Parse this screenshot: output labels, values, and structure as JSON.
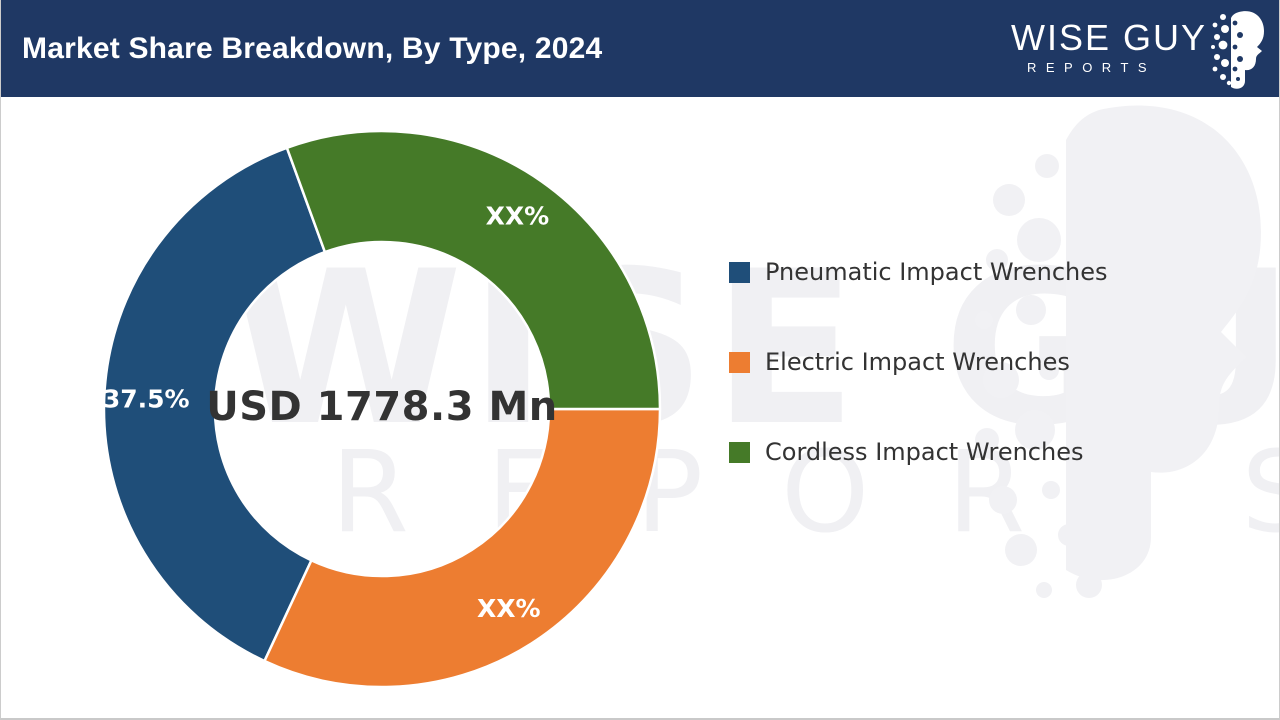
{
  "header": {
    "title": "Market Share Breakdown, By Type, 2024",
    "bg_color": "#1F3864",
    "logo": {
      "brand": "WISE GUY",
      "sub": "REPORTS"
    }
  },
  "watermark": {
    "brand": "WISE GUY",
    "sub": "REPORTS"
  },
  "chart_data": {
    "type": "pie",
    "variant": "donut",
    "title": "Market Share Breakdown, By Type, 2024",
    "center_label": "USD 1778.3 Mn",
    "total_value": "USD 1778.3 Mn",
    "legend_position": "right",
    "grid": false,
    "segments": [
      {
        "label": "Pneumatic Impact Wrenches",
        "value_label": "37.5%",
        "share_pct_est": 37.5,
        "color": "#1F4E79",
        "start_angle_deg": 110,
        "end_angle_deg": 245
      },
      {
        "label": "Electric Impact Wrenches",
        "value_label": "XX%",
        "share_pct_est": 31.9,
        "color": "#ED7D31",
        "start_angle_deg": 245,
        "end_angle_deg": 360
      },
      {
        "label": "Cordless Impact Wrenches",
        "value_label": "XX%",
        "share_pct_est": 30.6,
        "color": "#457A28",
        "start_angle_deg": 0,
        "end_angle_deg": 110
      }
    ],
    "colors": {
      "header_bg": "#1F3864",
      "text": "#333333",
      "label_text": "#ffffff"
    }
  }
}
